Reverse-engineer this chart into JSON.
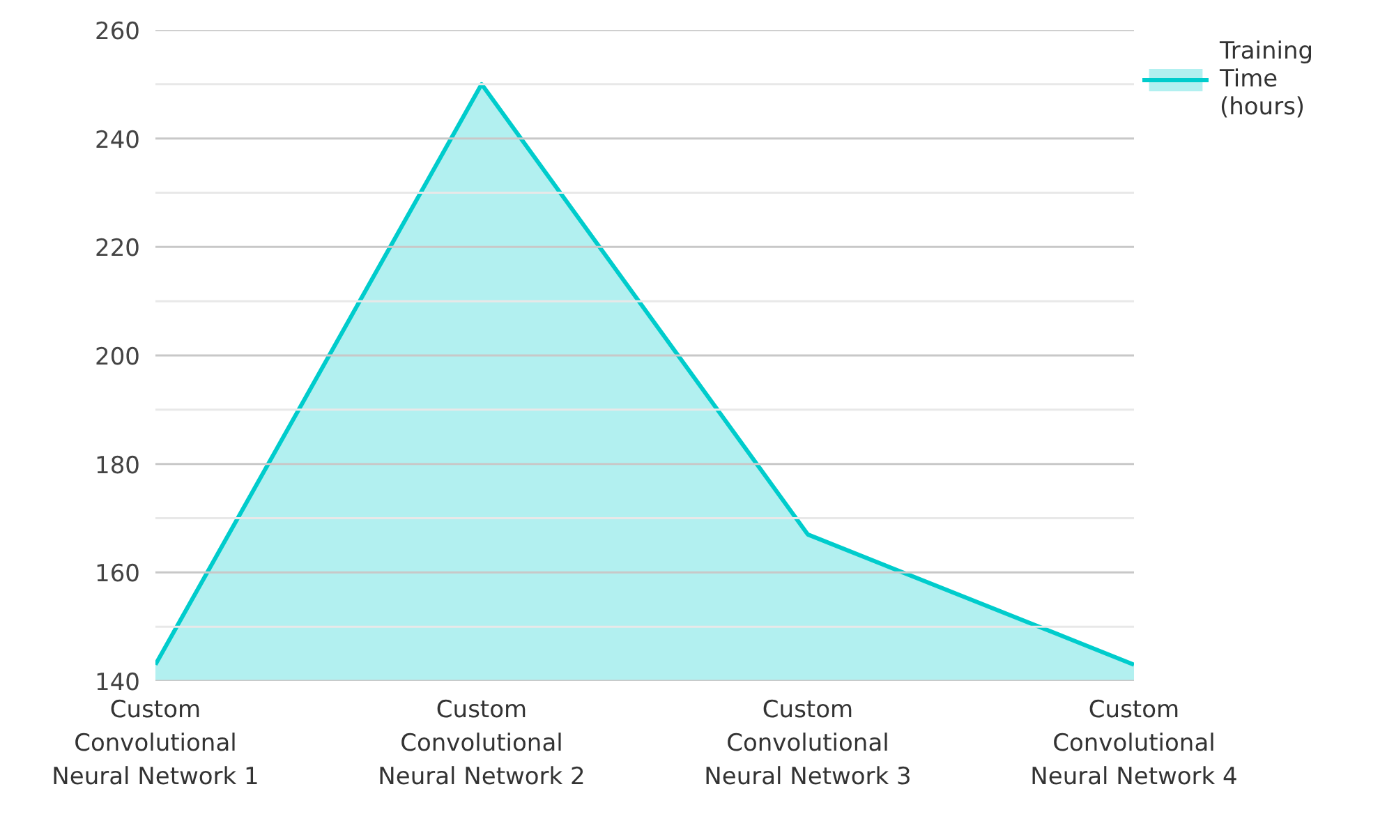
{
  "chart_data": {
    "type": "area",
    "categories": [
      "Custom Convolutional Neural Network 1",
      "Custom Convolutional Neural Network 2",
      "Custom Convolutional Neural Network 3",
      "Custom Convolutional Neural Network 4"
    ],
    "series": [
      {
        "name": "Training Time (hours)",
        "color": "#00cccc",
        "values": [
          143,
          250,
          167,
          143
        ]
      }
    ],
    "ylim": [
      140,
      260
    ],
    "yticks": [
      140,
      {
        "value": 150,
        "label": null
      },
      160,
      {
        "value": 170,
        "label": null
      },
      180,
      {
        "value": 190,
        "label": null
      },
      200,
      {
        "value": 210,
        "label": null
      },
      220,
      {
        "value": 230,
        "label": null
      },
      240,
      {
        "value": 250,
        "label": null
      },
      260
    ],
    "grid": "y",
    "legend": "top right"
  }
}
